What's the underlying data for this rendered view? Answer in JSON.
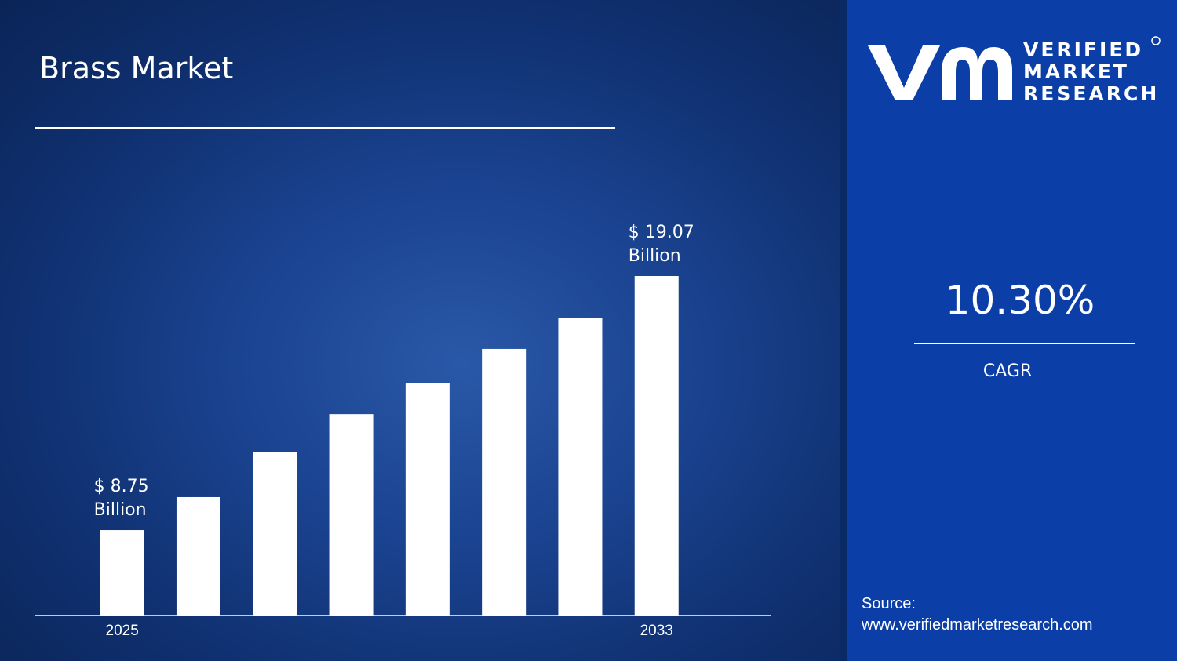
{
  "chart_data": {
    "type": "bar",
    "title": "Brass Market",
    "categories": [
      "2025",
      null,
      null,
      null,
      null,
      null,
      null,
      "2033"
    ],
    "values": [
      8.75,
      10.09,
      11.93,
      13.46,
      14.71,
      16.11,
      17.38,
      19.07
    ],
    "value_labels": [
      "$ 8.75 Billion",
      null,
      null,
      null,
      null,
      null,
      null,
      "$ 19.07 Billion"
    ],
    "color": "#ffffff",
    "ylim": [
      5.28,
      19.07
    ]
  },
  "logo": {
    "line1": "VERIFIED",
    "line2": "MARKET",
    "line3": "RESEARCH"
  },
  "cagr": {
    "value": "10.30%",
    "label": "CAGR"
  },
  "source": {
    "label": "Source:",
    "url": "www.verifiedmarketresearch.com"
  }
}
